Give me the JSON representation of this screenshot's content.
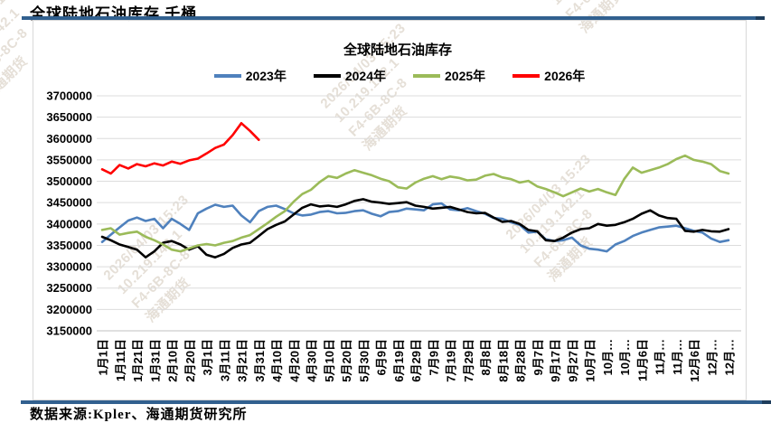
{
  "header": {
    "title": "全球陆地石油库存 千桶"
  },
  "footer": {
    "source": "数据来源:Kpler、海通期货研究所"
  },
  "watermark": {
    "lines": [
      "2026/04/03 15:23",
      "10.219.142.1",
      "F4-6B-8C-8",
      "海通期货"
    ]
  },
  "colors": {
    "accent_rule": "#31608f",
    "grid": "#dcdcdc",
    "axis": "#c2c2c2"
  },
  "chart_data": {
    "type": "line",
    "title": "全球陆地石油库存",
    "unit": "千桶",
    "grid": true,
    "legend_position": "top",
    "ylim": [
      3150000,
      3700000
    ],
    "y_ticks": [
      3700000,
      3650000,
      3600000,
      3550000,
      3500000,
      3450000,
      3400000,
      3350000,
      3300000,
      3250000,
      3200000,
      3150000
    ],
    "x_tick_interval_days": 10,
    "x_tick_labels": [
      "1月1日",
      "1月11日",
      "1月21日",
      "1月31日",
      "2月10日",
      "2月20日",
      "3月1日",
      "3月11日",
      "3月21日",
      "3月31日",
      "4月10日",
      "4月20日",
      "4月30日",
      "5月10日",
      "5月20日",
      "5月30日",
      "6月9日",
      "6月19日",
      "6月29日",
      "7月9日",
      "7月19日",
      "7月29日",
      "8月8日",
      "8月18日",
      "8月28日",
      "9月7日",
      "9月17日",
      "9月27日",
      "10月7日",
      "10月…",
      "10月…",
      "11月6日",
      "11月…",
      "11月…",
      "12月6日",
      "12月…",
      "12月…"
    ],
    "sample_step_days": 5,
    "series": [
      {
        "name": "2023年",
        "color": "#4f81bd",
        "start_day": 0,
        "step_days": 5,
        "values": [
          3358000,
          3375000,
          3392000,
          3408000,
          3415000,
          3407000,
          3412000,
          3390000,
          3412000,
          3400000,
          3386000,
          3425000,
          3436000,
          3445000,
          3440000,
          3443000,
          3420000,
          3404000,
          3430000,
          3440000,
          3443000,
          3435000,
          3425000,
          3420000,
          3422000,
          3428000,
          3430000,
          3425000,
          3426000,
          3430000,
          3432000,
          3424000,
          3418000,
          3428000,
          3430000,
          3436000,
          3434000,
          3432000,
          3446000,
          3448000,
          3434000,
          3432000,
          3437000,
          3430000,
          3424000,
          3414000,
          3412000,
          3404000,
          3398000,
          3380000,
          3382000,
          3364000,
          3360000,
          3362000,
          3368000,
          3350000,
          3342000,
          3340000,
          3336000,
          3352000,
          3360000,
          3372000,
          3380000,
          3386000,
          3392000,
          3394000,
          3396000,
          3390000,
          3384000,
          3380000,
          3366000,
          3358000,
          3362000
        ]
      },
      {
        "name": "2024年",
        "color": "#000000",
        "start_day": 0,
        "step_days": 5,
        "values": [
          3370000,
          3362000,
          3352000,
          3346000,
          3340000,
          3322000,
          3336000,
          3356000,
          3360000,
          3352000,
          3340000,
          3348000,
          3328000,
          3322000,
          3330000,
          3344000,
          3352000,
          3356000,
          3372000,
          3388000,
          3398000,
          3406000,
          3422000,
          3438000,
          3446000,
          3441000,
          3443000,
          3440000,
          3446000,
          3454000,
          3458000,
          3452000,
          3450000,
          3447000,
          3449000,
          3451000,
          3443000,
          3440000,
          3436000,
          3438000,
          3440000,
          3434000,
          3428000,
          3425000,
          3426000,
          3415000,
          3405000,
          3407000,
          3400000,
          3386000,
          3383000,
          3362000,
          3360000,
          3368000,
          3380000,
          3388000,
          3390000,
          3400000,
          3396000,
          3398000,
          3404000,
          3412000,
          3424000,
          3432000,
          3420000,
          3414000,
          3412000,
          3384000,
          3382000,
          3386000,
          3383000,
          3382000,
          3388000
        ]
      },
      {
        "name": "2025年",
        "color": "#9bbb59",
        "start_day": 0,
        "step_days": 5,
        "values": [
          3386000,
          3390000,
          3375000,
          3379000,
          3382000,
          3370000,
          3362000,
          3352000,
          3340000,
          3336000,
          3343000,
          3350000,
          3353000,
          3350000,
          3356000,
          3360000,
          3368000,
          3374000,
          3388000,
          3402000,
          3417000,
          3430000,
          3452000,
          3470000,
          3480000,
          3498000,
          3512000,
          3508000,
          3518000,
          3526000,
          3520000,
          3514000,
          3506000,
          3500000,
          3486000,
          3483000,
          3497000,
          3506000,
          3512000,
          3505000,
          3511000,
          3508000,
          3502000,
          3504000,
          3513000,
          3517000,
          3509000,
          3505000,
          3497000,
          3501000,
          3488000,
          3482000,
          3474000,
          3465000,
          3474000,
          3483000,
          3476000,
          3482000,
          3474000,
          3468000,
          3505000,
          3532000,
          3520000,
          3526000,
          3532000,
          3540000,
          3552000,
          3560000,
          3550000,
          3546000,
          3540000,
          3524000,
          3518000
        ]
      },
      {
        "name": "2026年",
        "color": "#ff0000",
        "start_day": 0,
        "step_days": 5,
        "values": [
          3528000,
          3518000,
          3538000,
          3530000,
          3540000,
          3535000,
          3542000,
          3537000,
          3546000,
          3541000,
          3549000,
          3553000,
          3565000,
          3578000,
          3586000,
          3608000,
          3636000,
          3618000,
          3597000
        ]
      }
    ]
  }
}
